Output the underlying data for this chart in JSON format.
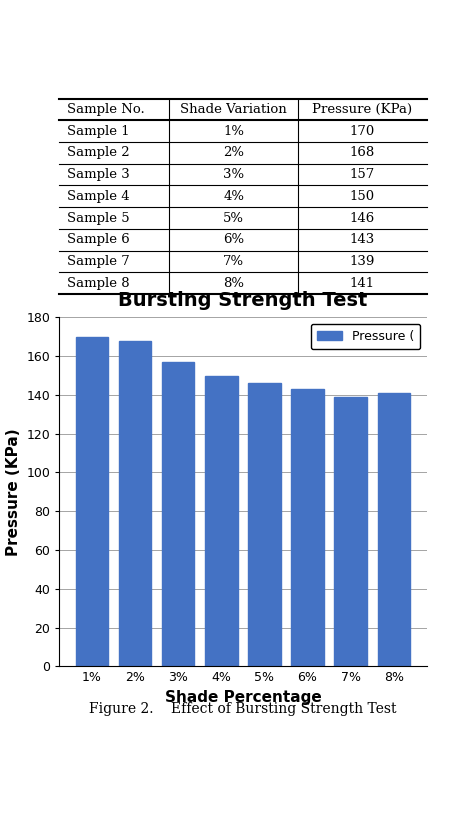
{
  "table_headers": [
    "Sample No.",
    "Shade Variation",
    "Pressure (KPa)"
  ],
  "table_rows": [
    [
      "Sample 1",
      "1%",
      "170"
    ],
    [
      "Sample 2",
      "2%",
      "168"
    ],
    [
      "Sample 3",
      "3%",
      "157"
    ],
    [
      "Sample 4",
      "4%",
      "150"
    ],
    [
      "Sample 5",
      "5%",
      "146"
    ],
    [
      "Sample 6",
      "6%",
      "143"
    ],
    [
      "Sample 7",
      "7%",
      "139"
    ],
    [
      "Sample 8",
      "8%",
      "141"
    ]
  ],
  "categories": [
    "1%",
    "2%",
    "3%",
    "4%",
    "5%",
    "6%",
    "7%",
    "8%"
  ],
  "values": [
    170,
    168,
    157,
    150,
    146,
    143,
    139,
    141
  ],
  "bar_color": "#4472C4",
  "title": "Bursting Strength Test",
  "xlabel": "Shade Percentage",
  "ylabel": "Pressure (KPa)",
  "ylim": [
    0,
    180
  ],
  "yticks": [
    0,
    20,
    40,
    60,
    80,
    100,
    120,
    140,
    160,
    180
  ],
  "legend_label": "Pressure (",
  "title_fontsize": 14,
  "label_fontsize": 11,
  "tick_fontsize": 9,
  "figure_caption": "Figure 2.    Effect of Bursting Strength Test",
  "bg_color": "#ffffff"
}
